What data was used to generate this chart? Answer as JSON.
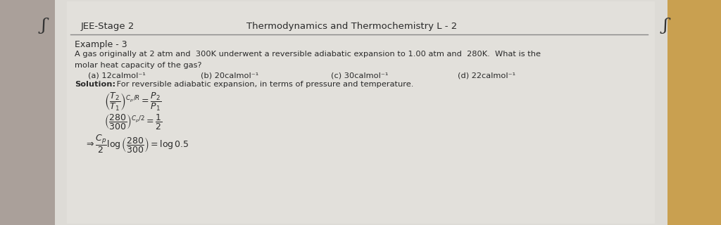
{
  "wood_bg": "#b8944a",
  "page_bg": "#d8d5ce",
  "white_bg": "#e8e6e0",
  "header_left": "JEE-Stage 2",
  "header_center": "Thermodynamics and Thermochemistry L - 2",
  "example_label": "Example - 3",
  "problem_line1": "A gas originally at 2 atm and  300K underwent a reversible adiabatic expansion to 1.00 atm and  280K.  What is the",
  "problem_line2": "molar heat capacity of the gas?",
  "opt_a": "(a) 12calmol⁻¹",
  "opt_b": "(b) 20calmol⁻¹",
  "opt_c": "(c) 30calmol⁻¹",
  "opt_d": "(d) 22calmol⁻¹",
  "solution_intro": "Solution: For reversible adiabatic expansion, in terms of pressure and temperature.",
  "text_color": "#2a2a2a",
  "header_line_color": "#777777",
  "swirl_color": "#333333"
}
